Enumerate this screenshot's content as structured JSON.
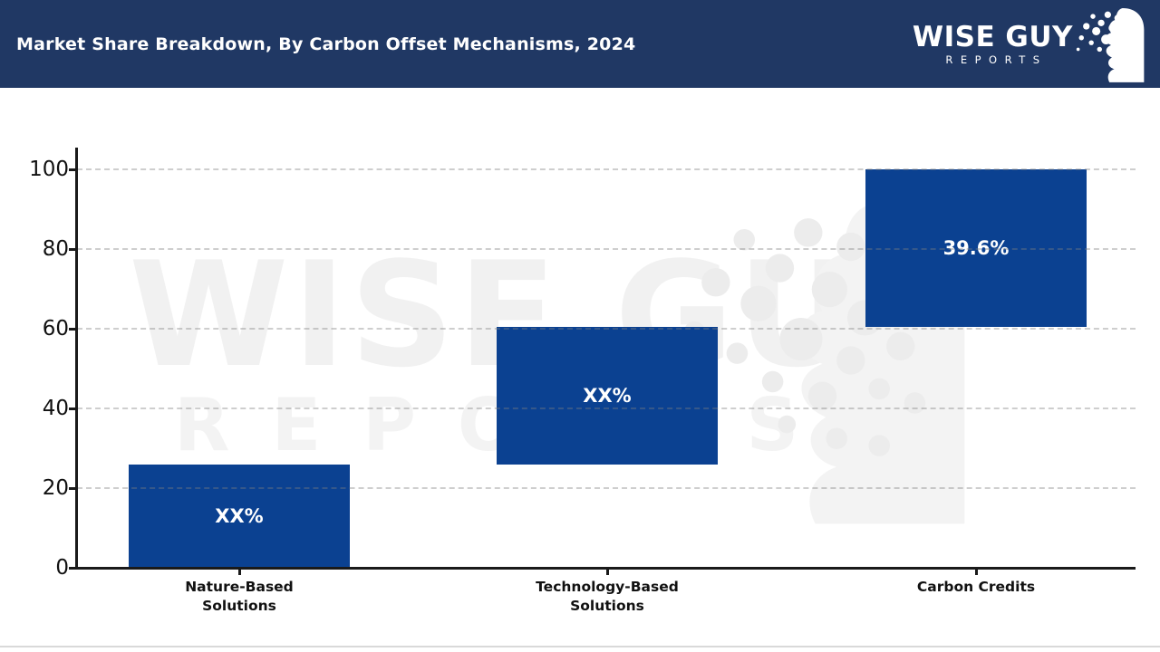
{
  "header": {
    "title": "Market Share Breakdown, By Carbon Offset Mechanisms, 2024",
    "bg_color": "#203864",
    "logo": {
      "line1": "WISE GUY",
      "line2": "REPORTS"
    }
  },
  "watermark": {
    "line1": "WISE GUY",
    "line2": "REPORTS"
  },
  "chart_data": {
    "type": "bar",
    "variant": "stacked-waterfall",
    "title": "Market Share Breakdown, By Carbon Offset Mechanisms, 2024",
    "categories": [
      "Nature-Based\nSolutions",
      "Technology-Based\nSolutions",
      "Carbon Credits"
    ],
    "segments": [
      {
        "category": "Nature-Based Solutions",
        "start": 0,
        "end": 25.8,
        "label": "XX%"
      },
      {
        "category": "Technology-Based Solutions",
        "start": 25.8,
        "end": 60.4,
        "label": "XX%"
      },
      {
        "category": "Carbon Credits",
        "start": 60.4,
        "end": 100,
        "label": "39.6%"
      }
    ],
    "ylim": [
      0,
      100
    ],
    "yticks": [
      0,
      20,
      40,
      60,
      80,
      100
    ],
    "grid": "dashed-horizontal",
    "legend": "none",
    "bar_color": "#0b4191",
    "bar_label_color": "#ffffff",
    "axis_color": "#1a1a1a",
    "grid_color": "#d4d4d4"
  }
}
